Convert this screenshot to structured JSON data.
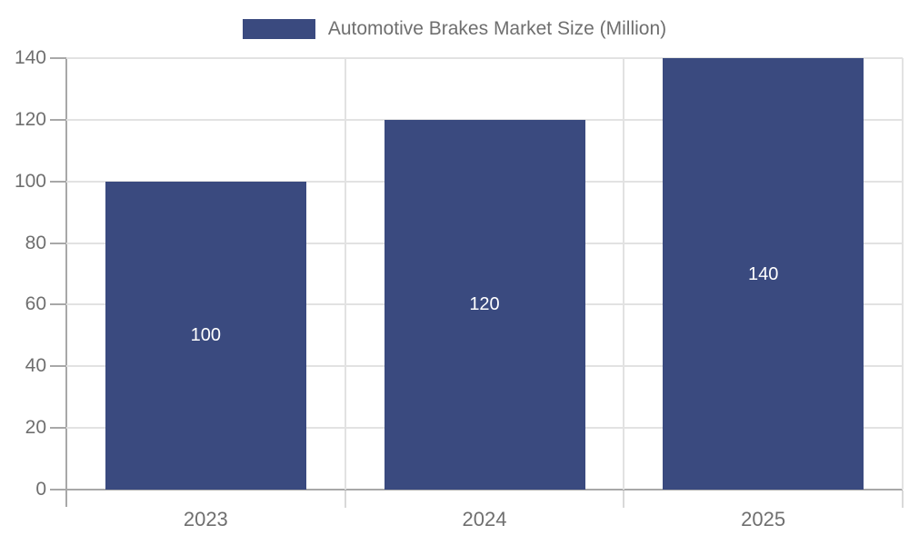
{
  "chart_data": {
    "type": "bar",
    "categories": [
      "2023",
      "2024",
      "2025"
    ],
    "series": [
      {
        "name": "Automotive Brakes Market Size (Million)",
        "values": [
          100,
          120,
          140
        ]
      }
    ],
    "bar_value_labels": [
      "100",
      "120",
      "140"
    ],
    "title": "Automotive Brakes Market Size (Million)",
    "xlabel": "",
    "ylabel": "",
    "ylim": [
      0,
      140
    ],
    "yticks": [
      0,
      20,
      40,
      60,
      80,
      100,
      120,
      140
    ],
    "grid": true,
    "legend_position": "top",
    "colors": {
      "bar": "#3a4a7f",
      "bar_value_label": "#ffffff",
      "axis_line": "#a8a8a8",
      "gridline": "#e2e2e2",
      "boundary_tick": "#d9d9d9",
      "tick_label_text": "#6f6f6f"
    }
  }
}
